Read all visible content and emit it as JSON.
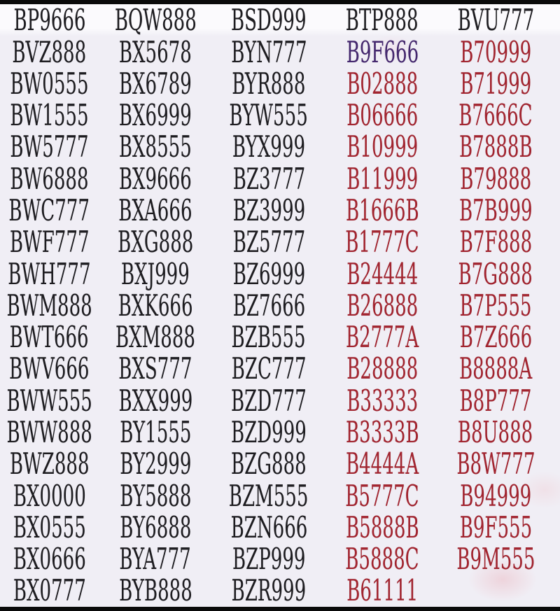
{
  "palette": {
    "black": "#1d1c20",
    "red": "#a2242f",
    "purple": "#44276e",
    "bg": "#f0eef5",
    "header_bg": "#fbfafd",
    "bar": "#0a0a0a"
  },
  "table": {
    "header": [
      "BP9666",
      "BQW888",
      "BSD999",
      "BTP888",
      "BVU777"
    ],
    "rows": [
      [
        "BVZ888",
        "BX5678",
        "BYN777",
        "B9F666",
        "B70999"
      ],
      [
        "BW0555",
        "BX6789",
        "BYR888",
        "B02888",
        "B71999"
      ],
      [
        "BW1555",
        "BX6999",
        "BYW555",
        "B06666",
        "B7666C"
      ],
      [
        "BW5777",
        "BX8555",
        "BYX999",
        "B10999",
        "B7888B"
      ],
      [
        "BW6888",
        "BX9666",
        "BZ3777",
        "B11999",
        "B79888"
      ],
      [
        "BWC777",
        "BXA666",
        "BZ3999",
        "B1666B",
        "B7B999"
      ],
      [
        "BWF777",
        "BXG888",
        "BZ5777",
        "B1777C",
        "B7F888"
      ],
      [
        "BWH777",
        "BXJ999",
        "BZ6999",
        "B24444",
        "B7G888"
      ],
      [
        "BWM888",
        "BXK666",
        "BZ7666",
        "B26888",
        "B7P555"
      ],
      [
        "BWT666",
        "BXM888",
        "BZB555",
        "B2777A",
        "B7Z666"
      ],
      [
        "BWV666",
        "BXS777",
        "BZC777",
        "B28888",
        "B8888A"
      ],
      [
        "BWW555",
        "BXX999",
        "BZD777",
        "B33333",
        "B8P777"
      ],
      [
        "BWW888",
        "BY1555",
        "BZD999",
        "B3333B",
        "B8U888"
      ],
      [
        "BWZ888",
        "BY2999",
        "BZG888",
        "B4444A",
        "B8W777"
      ],
      [
        "BX0000",
        "BY5888",
        "BZM555",
        "B5777C",
        "B94999"
      ],
      [
        "BX0555",
        "BY6888",
        "BZN666",
        "B5888B",
        "B9F555"
      ],
      [
        "BX0666",
        "BYA777",
        "BZP999",
        "B5888C",
        "B9M555"
      ],
      [
        "BX0777",
        "BYB888",
        "BZR999",
        "B61111",
        ""
      ]
    ],
    "cell_colors": [
      [
        "black",
        "black",
        "black",
        "purple",
        "red"
      ],
      [
        "black",
        "black",
        "black",
        "red",
        "red"
      ],
      [
        "black",
        "black",
        "black",
        "red",
        "red"
      ],
      [
        "black",
        "black",
        "black",
        "red",
        "red"
      ],
      [
        "black",
        "black",
        "black",
        "red",
        "red"
      ],
      [
        "black",
        "black",
        "black",
        "red",
        "red"
      ],
      [
        "black",
        "black",
        "black",
        "red",
        "red"
      ],
      [
        "black",
        "black",
        "black",
        "red",
        "red"
      ],
      [
        "black",
        "black",
        "black",
        "red",
        "red"
      ],
      [
        "black",
        "black",
        "black",
        "red",
        "red"
      ],
      [
        "black",
        "black",
        "black",
        "red",
        "red"
      ],
      [
        "black",
        "black",
        "black",
        "red",
        "red"
      ],
      [
        "black",
        "black",
        "black",
        "red",
        "red"
      ],
      [
        "black",
        "black",
        "black",
        "red",
        "red"
      ],
      [
        "black",
        "black",
        "black",
        "red",
        "red"
      ],
      [
        "black",
        "black",
        "black",
        "red",
        "red"
      ],
      [
        "black",
        "black",
        "black",
        "red",
        "red"
      ],
      [
        "black",
        "black",
        "black",
        "red",
        ""
      ]
    ]
  }
}
